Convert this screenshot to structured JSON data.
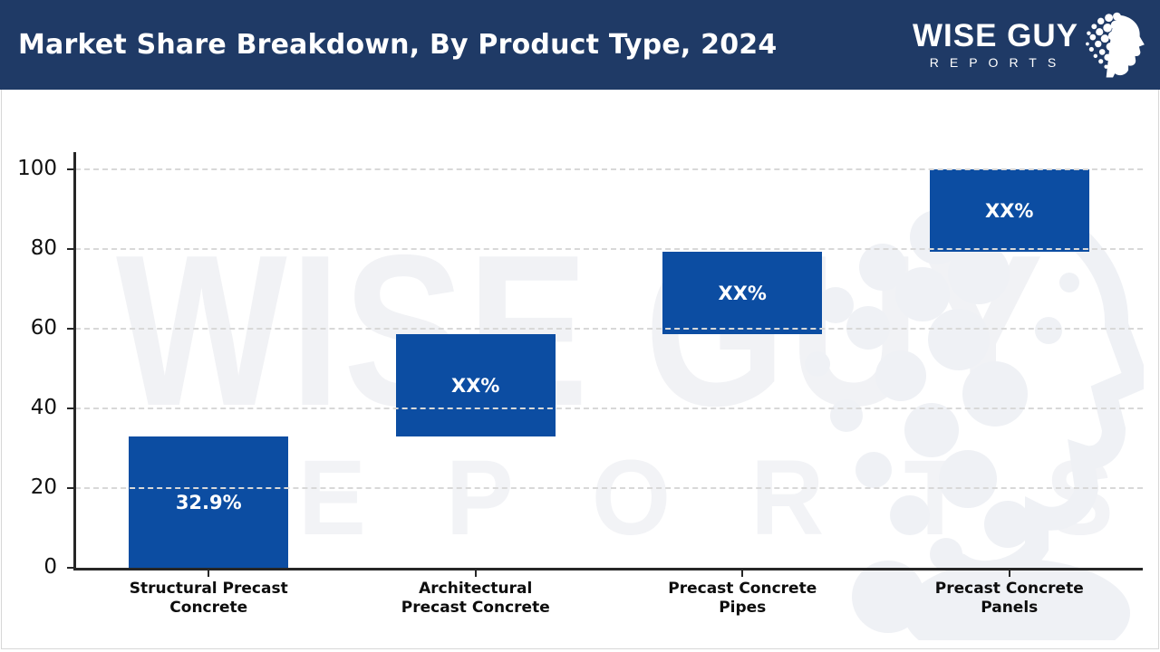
{
  "header": {
    "title": "Market Share Breakdown, By Product Type, 2024",
    "bg_color": "#1f3a66",
    "logo": {
      "brand_top": "WISE GUY",
      "brand_bottom": "REPORTS"
    }
  },
  "chart_data": {
    "type": "bar",
    "variant": "waterfall",
    "title": "Market Share Breakdown, By Product Type, 2024",
    "categories": [
      "Structural Precast\nConcrete",
      "Architectural\nPrecast Concrete",
      "Precast Concrete\nPipes",
      "Precast Concrete\nPanels"
    ],
    "segments": [
      {
        "category": "Structural Precast Concrete",
        "start": 0,
        "end": 32.9,
        "value": 32.9,
        "label": "32.9%"
      },
      {
        "category": "Architectural Precast Concrete",
        "start": 32.9,
        "end": 58.6,
        "value": 25.7,
        "label": "XX%"
      },
      {
        "category": "Precast Concrete Pipes",
        "start": 58.6,
        "end": 79.3,
        "value": 20.7,
        "label": "XX%"
      },
      {
        "category": "Precast Concrete Panels",
        "start": 79.3,
        "end": 100,
        "value": 20.7,
        "label": "XX%"
      }
    ],
    "ylim": [
      0,
      100
    ],
    "yticks": [
      0,
      20,
      40,
      60,
      80,
      100
    ],
    "xlabel": "",
    "ylabel": "",
    "grid": "horizontal-dashed",
    "legend": "none",
    "bar_color": "#0c4da2",
    "bar_label_color": "#ffffff",
    "axis_color": "#262626",
    "watermark": {
      "line1": "WISE GUY",
      "line2": "R E P O R T S"
    }
  }
}
